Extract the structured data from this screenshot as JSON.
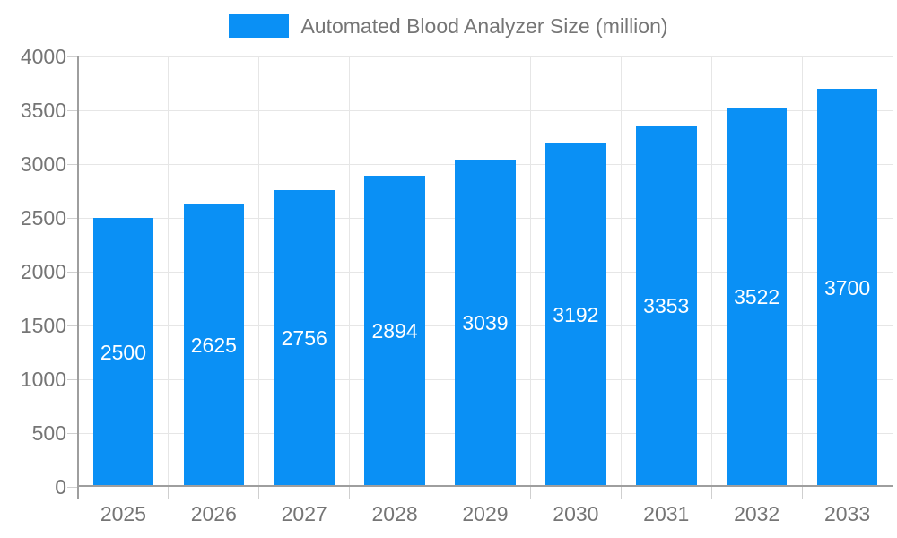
{
  "chart_data": {
    "type": "bar",
    "title": "Automated Blood Analyzer Size (million)",
    "categories": [
      "2025",
      "2026",
      "2027",
      "2028",
      "2029",
      "2030",
      "2031",
      "2032",
      "2033"
    ],
    "series": [
      {
        "name": "Automated Blood Analyzer Size (million)",
        "values": [
          2500,
          2625,
          2756,
          2894,
          3039,
          3192,
          3353,
          3522,
          3700
        ]
      }
    ],
    "values": [
      2500,
      2625,
      2756,
      2894,
      3039,
      3192,
      3353,
      3522,
      3700
    ],
    "bar_value_labels": [
      "2500",
      "2625",
      "2756",
      "2894",
      "3039",
      "3192",
      "3353",
      "3522",
      "3700"
    ],
    "xlabel": "",
    "ylabel": "",
    "ylim": [
      0,
      4000
    ],
    "ytick_step": 500,
    "yticks": [
      0,
      500,
      1000,
      1500,
      2000,
      2500,
      3000,
      3500,
      4000
    ],
    "grid": true,
    "legend_position": "top",
    "colors": {
      "bar": "#0A90F5",
      "bar_label": "#FFFFFF",
      "axis_text": "#757575",
      "grid_line": "#E6E6E6",
      "axis_line": "#9E9E9E",
      "tick_mark": "#CFCFCF",
      "background": "#FFFFFF"
    }
  }
}
